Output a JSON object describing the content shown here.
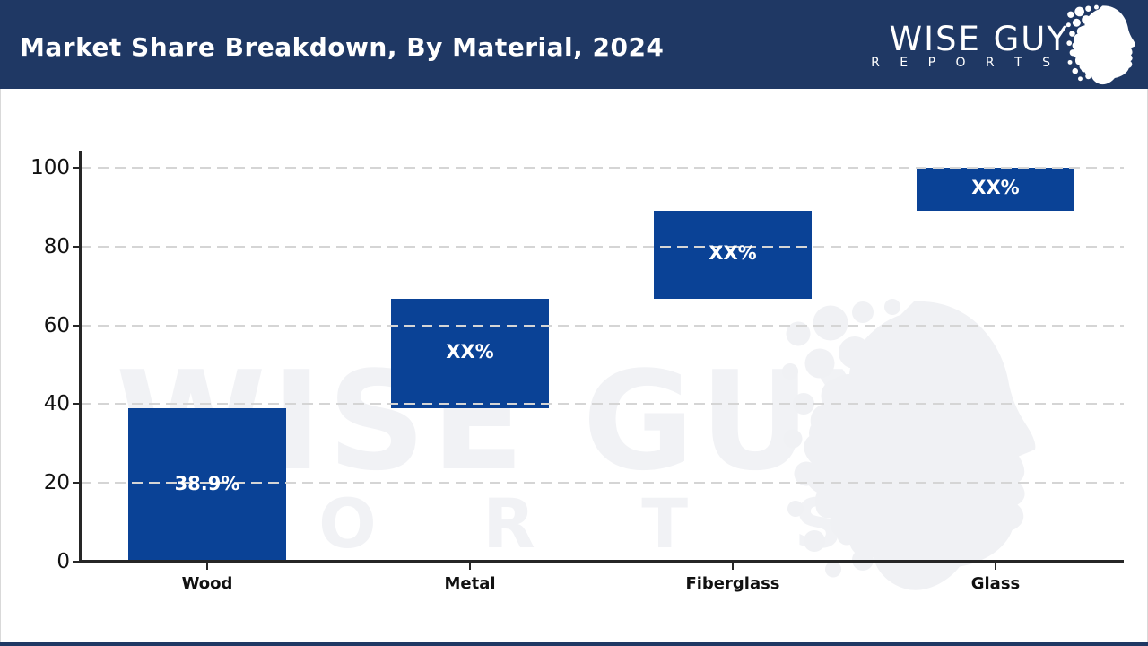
{
  "header": {
    "title": "Market Share Breakdown, By Material, 2024",
    "logo_line1": "WISE GUY",
    "logo_line2": "R E P O R T S",
    "bg_color": "#1F3864",
    "text_color": "#FFFFFF"
  },
  "watermark": {
    "line1": "WISE GUY",
    "line2": "P O R T S",
    "color": "#F1F2F5"
  },
  "chart_data": {
    "type": "bar",
    "subtype": "waterfall",
    "title": "Market Share Breakdown, By Material, 2024",
    "categories": [
      "Wood",
      "Metal",
      "Fiberglass",
      "Glass"
    ],
    "segments": [
      {
        "category": "Wood",
        "start": 0,
        "end": 38.9,
        "label": "38.9%"
      },
      {
        "category": "Metal",
        "start": 38.9,
        "end": 66.7,
        "label": "XX%"
      },
      {
        "category": "Fiberglass",
        "start": 66.7,
        "end": 89.0,
        "label": "XX%"
      },
      {
        "category": "Glass",
        "start": 89.0,
        "end": 100.0,
        "label": "XX%"
      }
    ],
    "xlabel": "",
    "ylabel": "",
    "ylim": [
      0,
      100
    ],
    "yticks": [
      0,
      20,
      40,
      60,
      80,
      100
    ],
    "grid": "horizontal-dashed-over-bars",
    "legend": "none",
    "bar_color": "#0A4296",
    "bar_label_color": "#FFFFFF",
    "gridline_color": "#D5D5D5",
    "axis_color": "#262626",
    "tick_label_color": "#111111"
  }
}
